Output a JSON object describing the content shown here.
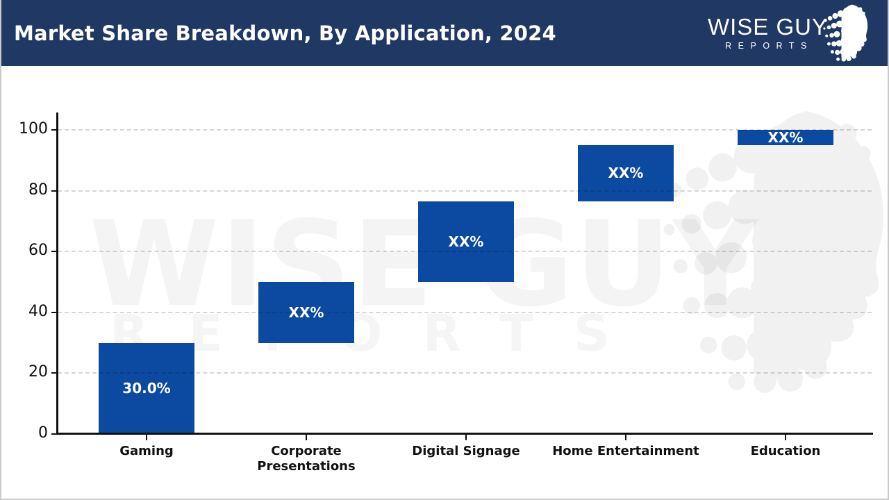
{
  "header": {
    "title": "Market Share Breakdown, By Application, 2024",
    "logo": {
      "line1": "WISE GUY",
      "line2": "REPORTS"
    }
  },
  "watermark": {
    "line1": "WISE GUY",
    "line2": "REPORTS"
  },
  "chart_data": {
    "type": "bar",
    "variant": "floating segment / waterfall-style market share bars",
    "title": "Market Share Breakdown, By Application, 2024",
    "categories": [
      "Gaming",
      "Corporate Presentations",
      "Digital Signage",
      "Home Entertainment",
      "Education"
    ],
    "series": [
      {
        "name": "Market share (cumulative span, %)",
        "segments": [
          {
            "start": 0,
            "end": 30
          },
          {
            "start": 30,
            "end": 50
          },
          {
            "start": 50,
            "end": 76.5
          },
          {
            "start": 76.5,
            "end": 95
          },
          {
            "start": 95,
            "end": 100
          }
        ]
      }
    ],
    "bar_labels": [
      "30.0%",
      "XX%",
      "XX%",
      "XX%",
      "XX%"
    ],
    "xlabel": "",
    "ylabel": "",
    "ylim": [
      0,
      100
    ],
    "yticks": [
      0,
      20,
      40,
      60,
      80,
      100
    ],
    "grid": "horizontal dashed, drawn above bars",
    "legend": "none",
    "bar_color": "#0c4aa1",
    "bar_label_color": "#ffffff",
    "axis_color": "#111111",
    "header_color": "#1f3864"
  }
}
